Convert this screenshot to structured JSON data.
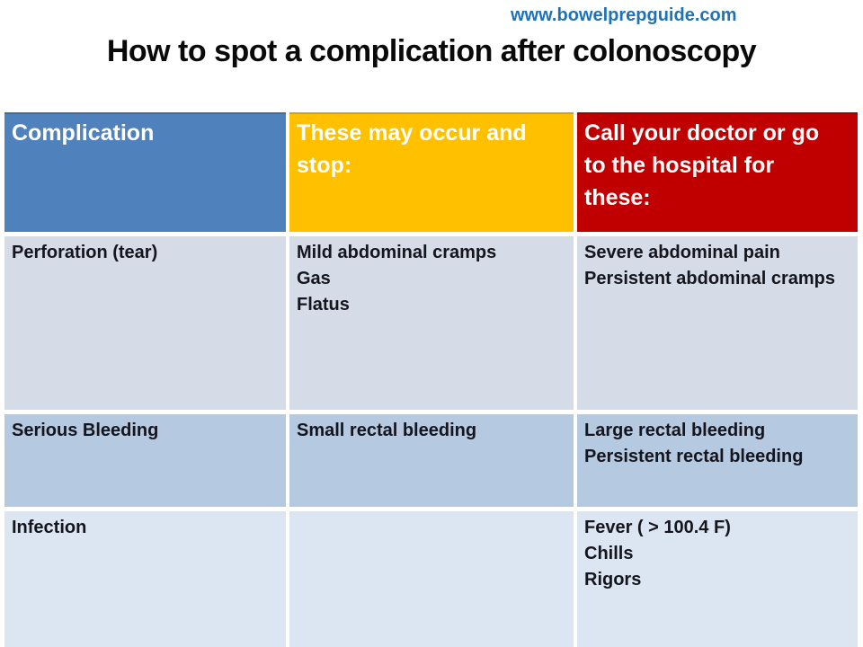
{
  "brand": {
    "url": "www.bowelprepguide.com",
    "color": "#1F72B8"
  },
  "title": {
    "text": "How to spot a complication after colonoscopy"
  },
  "table": {
    "headers": [
      {
        "label": "Complication",
        "lines": [
          "Complication"
        ],
        "bg": "#4F81BD"
      },
      {
        "label": "These may occur and stop:",
        "lines": [
          "These may occur and",
          "stop:"
        ],
        "bg": "#FFC000"
      },
      {
        "label": "Call your doctor or go to the hospital for these:",
        "lines": [
          "Call your doctor or go",
          "to the hospital for",
          "these:"
        ],
        "bg": "#C00000"
      }
    ],
    "rows": [
      {
        "bg": "#D6DBE8",
        "complication": "Perforation (tear)",
        "may_occur": [
          "Mild abdominal cramps",
          "Gas",
          "Flatus"
        ],
        "call_doctor": [
          "Severe abdominal pain",
          "Persistent abdominal cramps"
        ]
      },
      {
        "bg": "#B5C9E1",
        "complication": "Serious Bleeding",
        "may_occur": [
          "Small rectal bleeding"
        ],
        "call_doctor": [
          "Large rectal bleeding",
          "Persistent rectal bleeding"
        ]
      },
      {
        "bg": "#DCE6F2",
        "complication": "Infection",
        "may_occur": [],
        "call_doctor": [
          "Fever ( > 100.4 F)",
          "Chills",
          "Rigors"
        ]
      }
    ]
  }
}
